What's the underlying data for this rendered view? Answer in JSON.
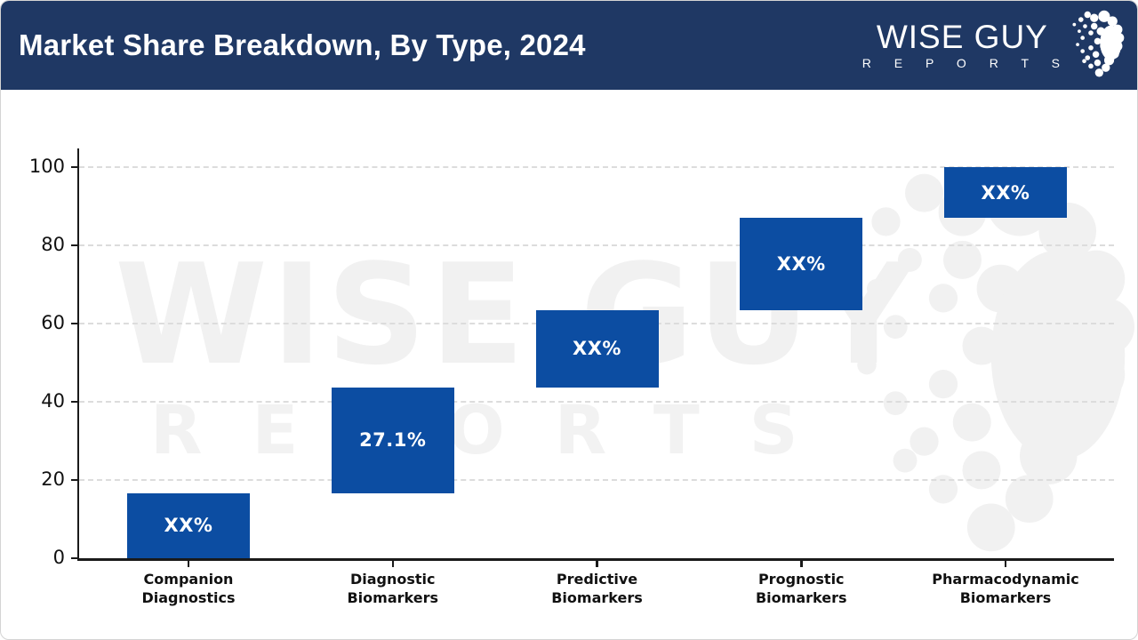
{
  "header": {
    "title": "Market Share Breakdown, By Type, 2024",
    "logo": {
      "line1": "WISE GUY",
      "line2": "R E P O R T S"
    }
  },
  "watermark": {
    "line1": "WISE GUY",
    "line2": "REPORTS"
  },
  "colors": {
    "header_bg": "#1f3864",
    "bar": "#0c4da2",
    "bar_label": "#ffffff",
    "gridline": "#dcdcdc",
    "axis": "#1a1a1a",
    "watermark": "#f1f1f1"
  },
  "chart_data": {
    "type": "bar",
    "subtype": "waterfall",
    "title": "Market Share Breakdown, By Type, 2024",
    "xlabel": "",
    "ylabel": "",
    "categories": [
      "Companion Diagnostics",
      "Diagnostic Biomarkers",
      "Predictive Biomarkers",
      "Prognostic Biomarkers",
      "Pharmacodynamic Biomarkers"
    ],
    "segments": [
      {
        "start": 0,
        "end": 16.6,
        "value": 16.6,
        "label": "XX%"
      },
      {
        "start": 16.6,
        "end": 43.7,
        "value": 27.1,
        "label": "27.1%"
      },
      {
        "start": 43.7,
        "end": 63.5,
        "value": 19.8,
        "label": "XX%"
      },
      {
        "start": 63.5,
        "end": 87.0,
        "value": 23.5,
        "label": "XX%"
      },
      {
        "start": 87.0,
        "end": 100,
        "value": 13.0,
        "label": "XX%"
      }
    ],
    "yticks": [
      0,
      20,
      40,
      60,
      80,
      100
    ],
    "ylim": [
      0,
      105
    ],
    "grid": "horizontal-dashed",
    "legend": "none",
    "bar_color": "#0c4da2"
  }
}
